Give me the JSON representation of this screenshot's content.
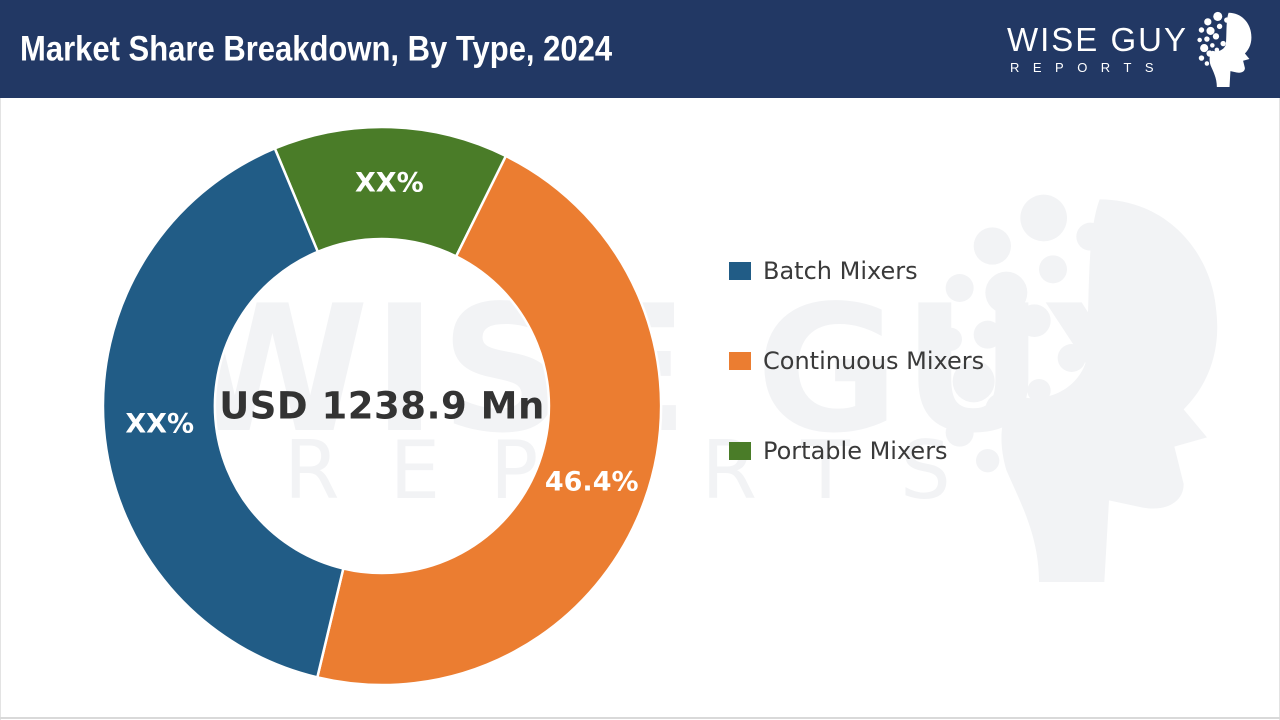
{
  "header": {
    "title": "Market Share Breakdown, By Type, 2024",
    "logo": {
      "wordmark": "WISE GUY",
      "subtext": "REPORTS"
    }
  },
  "watermark": {
    "line1": "WISE GUY",
    "line2": "REPORTS"
  },
  "colors": {
    "header_bg": "#223864",
    "batch_blue": "#215C86",
    "continuous_orange": "#EB7D31",
    "portable_green": "#4A7C28",
    "watermark_gray": "#F2F3F5",
    "divider_gray": "#D9D9D9",
    "center_text": "#333333",
    "legend_text": "#3A3A3A",
    "slice_label_text": "#FFFFFF"
  },
  "chart_data": {
    "type": "pie",
    "subtype": "donut",
    "title": "Market Share Breakdown, By Type, 2024",
    "center_label": "USD 1238.9 Mn",
    "units": "USD Mn",
    "total_value": 1238.9,
    "start_angle_deg": -22.6,
    "legend_position": "right",
    "segments": [
      {
        "name": "Portable Mixers",
        "label": "XX%",
        "value_pct": 13.6,
        "color": "#4A7C28"
      },
      {
        "name": "Continuous Mixers",
        "label": "46.4%",
        "value_pct": 46.4,
        "color": "#EB7D31"
      },
      {
        "name": "Batch Mixers",
        "label": "XX%",
        "value_pct": 40.0,
        "color": "#215C86"
      }
    ],
    "legend": [
      {
        "label": "Batch Mixers",
        "color": "#215C86"
      },
      {
        "label": "Continuous Mixers",
        "color": "#EB7D31"
      },
      {
        "label": "Portable Mixers",
        "color": "#4A7C28"
      }
    ]
  }
}
